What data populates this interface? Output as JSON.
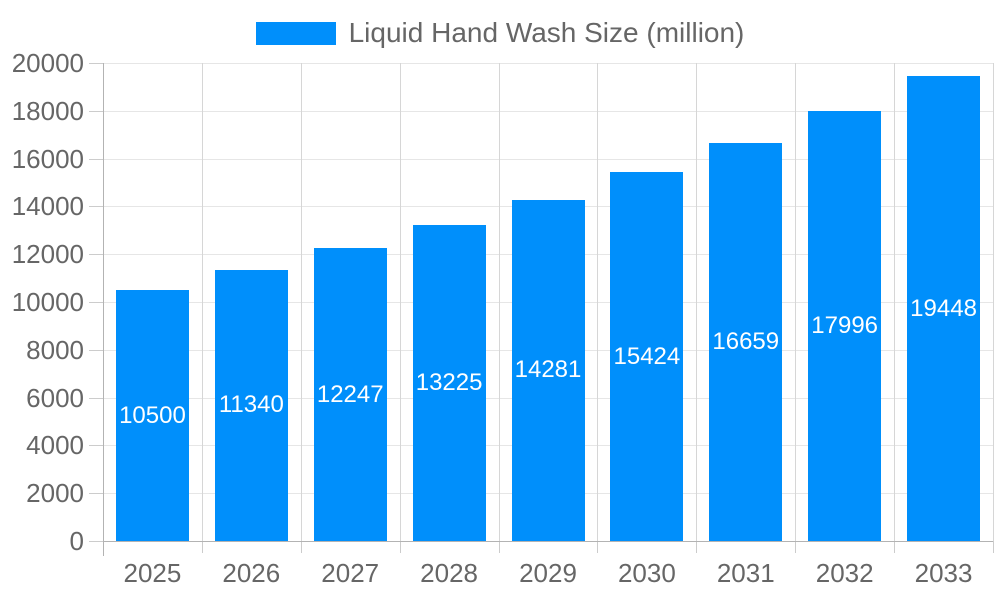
{
  "chart_data": {
    "type": "bar",
    "title": "",
    "legend": {
      "label": "Liquid Hand Wash Size (million)",
      "position": "top-center"
    },
    "categories": [
      "2025",
      "2026",
      "2027",
      "2028",
      "2029",
      "2030",
      "2031",
      "2032",
      "2033"
    ],
    "series": [
      {
        "name": "Liquid Hand Wash Size (million)",
        "values": [
          10500,
          11340,
          12247,
          13225,
          14281,
          15424,
          16659,
          17996,
          19448
        ]
      }
    ],
    "value_labels": [
      "10500",
      "11340",
      "12247",
      "13225",
      "14281",
      "15424",
      "16659",
      "17996",
      "19448"
    ],
    "xlabel": "",
    "ylabel": "",
    "ylim": [
      0,
      20000
    ],
    "yticks": [
      0,
      2000,
      4000,
      6000,
      8000,
      10000,
      12000,
      14000,
      16000,
      18000,
      20000
    ],
    "ytick_labels": [
      "0",
      "2000",
      "4000",
      "6000",
      "8000",
      "10000",
      "12000",
      "14000",
      "16000",
      "18000",
      "20000"
    ],
    "grid": true,
    "colors": {
      "bar": "#008FFB",
      "value_label": "#FFFFFF",
      "axis_text": "#666666",
      "legend_text": "#666666",
      "grid_horizontal": "#E6E6E6",
      "grid_vertical": "#D6D6D6",
      "axis_line": "#B3B3B3",
      "tick": "#CCCCCC",
      "background": "#FFFFFF"
    }
  }
}
